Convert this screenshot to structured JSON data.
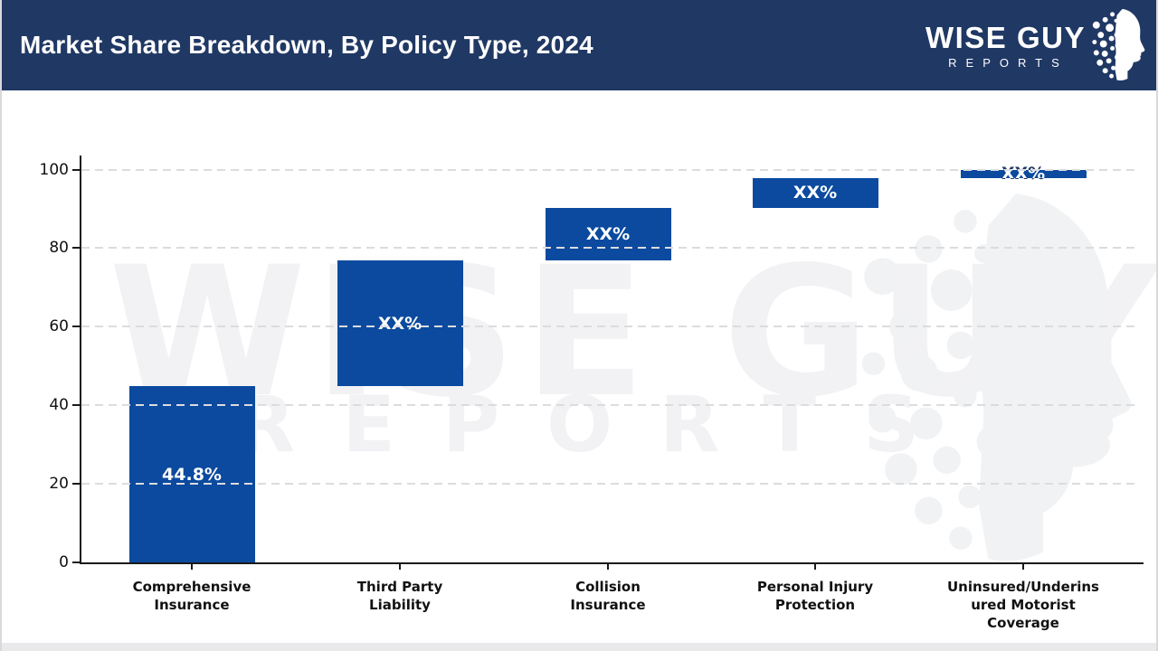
{
  "header": {
    "title": "Market Share Breakdown, By Policy Type, 2024",
    "bg_color": "#203864",
    "logo": {
      "line1": "WISE GUY",
      "line2": "REPORTS"
    }
  },
  "watermark": {
    "line1": "WISE GUY",
    "line2": "REPORTS"
  },
  "chart_data": {
    "type": "bar",
    "subtype": "waterfall",
    "title": "Market Share Breakdown, By Policy Type, 2024",
    "bar_color": "#0b4a9f",
    "grid": "horizontal-dashed",
    "legend": "none",
    "ylim": [
      0,
      103.5
    ],
    "yticks": [
      0,
      20,
      40,
      60,
      80,
      100
    ],
    "categories": [
      "Comprehensive Insurance",
      "Third Party Liability",
      "Collision Insurance",
      "Personal Injury Protection",
      "Uninsured/Underinsured Motorist Coverage"
    ],
    "category_display_lines": [
      [
        "Comprehensive",
        "Insurance"
      ],
      [
        "Third Party",
        "Liability"
      ],
      [
        "Collision",
        "Insurance"
      ],
      [
        "Personal Injury",
        "Protection"
      ],
      [
        "Uninsured/Underins",
        "ured Motorist",
        "Coverage"
      ]
    ],
    "segments": [
      {
        "category": "Comprehensive Insurance",
        "start": 0,
        "end": 44.8,
        "label": "44.8%"
      },
      {
        "category": "Third Party Liability",
        "start": 44.8,
        "end": 76.8,
        "label": "XX%"
      },
      {
        "category": "Collision Insurance",
        "start": 76.8,
        "end": 90.3,
        "label": "XX%"
      },
      {
        "category": "Personal Injury Protection",
        "start": 90.3,
        "end": 97.9,
        "label": "XX%"
      },
      {
        "category": "Uninsured/Underinsured Motorist Coverage",
        "start": 97.9,
        "end": 100,
        "label": "XX%"
      }
    ]
  }
}
